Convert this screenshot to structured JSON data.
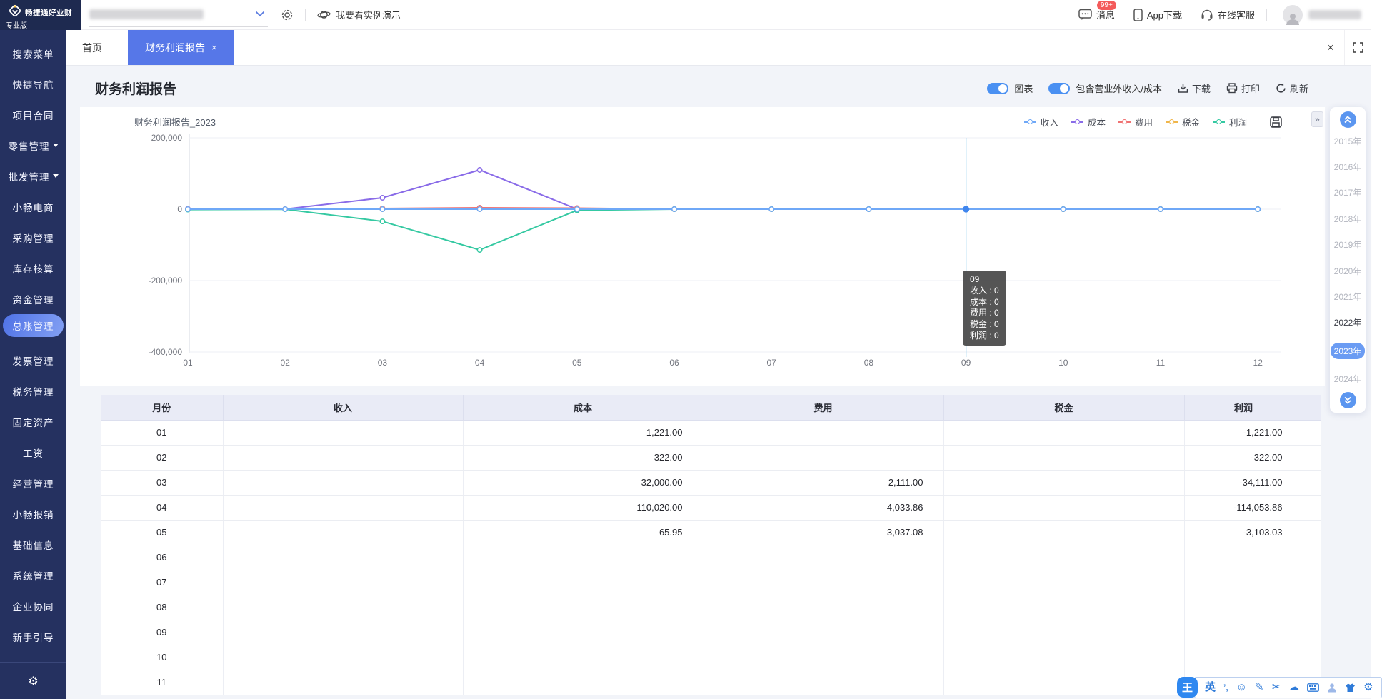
{
  "app": {
    "name": "畅捷通好业财",
    "edition": "专业版"
  },
  "topbar": {
    "demo_label": "我要看实例演示",
    "messages_label": "消息",
    "badge": "99+",
    "app_download_label": "App下载",
    "support_label": "在线客服"
  },
  "tabs": {
    "home": "首页",
    "active": "财务利润报告"
  },
  "sidebar": {
    "items": [
      {
        "label": "搜索菜单"
      },
      {
        "label": "快捷导航"
      },
      {
        "label": "项目合同"
      },
      {
        "label": "零售管理",
        "arrow": true
      },
      {
        "label": "批发管理",
        "arrow": true
      },
      {
        "label": "小畅电商"
      },
      {
        "label": "采购管理"
      },
      {
        "label": "库存核算"
      },
      {
        "label": "资金管理"
      },
      {
        "label": "总账管理",
        "active": true
      },
      {
        "label": "发票管理"
      },
      {
        "label": "税务管理"
      },
      {
        "label": "固定资产"
      },
      {
        "label": "工资"
      },
      {
        "label": "经营管理"
      },
      {
        "label": "小畅报销"
      },
      {
        "label": "基础信息"
      },
      {
        "label": "系统管理"
      },
      {
        "label": "企业协同"
      },
      {
        "label": "新手引导"
      }
    ]
  },
  "page": {
    "title": "财务利润报告",
    "toggles": [
      {
        "label": "图表",
        "on": true
      },
      {
        "label": "包含营业外收入/成本",
        "on": true
      }
    ],
    "actions": [
      {
        "label": "下载"
      },
      {
        "label": "打印"
      },
      {
        "label": "刷新"
      }
    ]
  },
  "chart_data": {
    "type": "line",
    "title": "财务利润报告_2023",
    "x": [
      "01",
      "02",
      "03",
      "04",
      "05",
      "06",
      "07",
      "08",
      "09",
      "10",
      "11",
      "12"
    ],
    "ylim": [
      -400000,
      200000
    ],
    "yticks": [
      200000,
      0,
      -200000,
      -400000
    ],
    "ytick_labels": [
      "200,000",
      "0",
      "-200,000",
      "-400,000"
    ],
    "grid": true,
    "legend_position": "top-right",
    "series": [
      {
        "name": "收入",
        "color": "#6fa8f7",
        "values": [
          0,
          0,
          0,
          0,
          0,
          0,
          0,
          0,
          0,
          0,
          0,
          0
        ]
      },
      {
        "name": "成本",
        "color": "#8a6ce8",
        "values": [
          1221,
          322,
          32000,
          110020,
          65.95,
          0,
          0,
          0,
          0,
          0,
          0,
          0
        ]
      },
      {
        "name": "费用",
        "color": "#f07272",
        "values": [
          0,
          0,
          2111,
          4033.86,
          3037.08,
          0,
          0,
          0,
          0,
          0,
          0,
          0
        ]
      },
      {
        "name": "税金",
        "color": "#f0b64a",
        "values": [
          0,
          0,
          0,
          0,
          0,
          0,
          0,
          0,
          0,
          0,
          0,
          0
        ]
      },
      {
        "name": "利润",
        "color": "#35c9a2",
        "values": [
          -1221,
          -322,
          -34111,
          -114053.86,
          -3103.03,
          0,
          0,
          0,
          0,
          0,
          0,
          0
        ]
      }
    ],
    "hover_index": 8
  },
  "tooltip": {
    "title": "09",
    "separator": " : ",
    "rows": [
      {
        "label": "收入",
        "value": "0"
      },
      {
        "label": "成本",
        "value": "0"
      },
      {
        "label": "费用",
        "value": "0"
      },
      {
        "label": "税金",
        "value": "0"
      },
      {
        "label": "利润",
        "value": "0"
      }
    ]
  },
  "years": {
    "items": [
      {
        "label": "2015年",
        "state": "muted"
      },
      {
        "label": "2016年",
        "state": "muted"
      },
      {
        "label": "2017年",
        "state": "muted"
      },
      {
        "label": "2018年",
        "state": "muted"
      },
      {
        "label": "2019年",
        "state": "muted"
      },
      {
        "label": "2020年",
        "state": "muted"
      },
      {
        "label": "2021年",
        "state": "muted"
      },
      {
        "label": "2022年",
        "state": "normal"
      },
      {
        "label": "2023年",
        "state": "selected"
      },
      {
        "label": "2024年",
        "state": "muted"
      }
    ]
  },
  "table": {
    "headers": [
      "月份",
      "收入",
      "成本",
      "费用",
      "税金",
      "利润"
    ],
    "rows": [
      [
        "01",
        "",
        "1,221.00",
        "",
        "",
        "-1,221.00"
      ],
      [
        "02",
        "",
        "322.00",
        "",
        "",
        "-322.00"
      ],
      [
        "03",
        "",
        "32,000.00",
        "2,111.00",
        "",
        "-34,111.00"
      ],
      [
        "04",
        "",
        "110,020.00",
        "4,033.86",
        "",
        "-114,053.86"
      ],
      [
        "05",
        "",
        "65.95",
        "3,037.08",
        "",
        "-3,103.03"
      ],
      [
        "06",
        "",
        "",
        "",
        "",
        ""
      ],
      [
        "07",
        "",
        "",
        "",
        "",
        ""
      ],
      [
        "08",
        "",
        "",
        "",
        "",
        ""
      ],
      [
        "09",
        "",
        "",
        "",
        "",
        ""
      ],
      [
        "10",
        "",
        "",
        "",
        "",
        ""
      ],
      [
        "11",
        "",
        "",
        "",
        "",
        ""
      ]
    ]
  },
  "ime": {
    "logo": "王",
    "lang": "英",
    "punct": "’,"
  }
}
